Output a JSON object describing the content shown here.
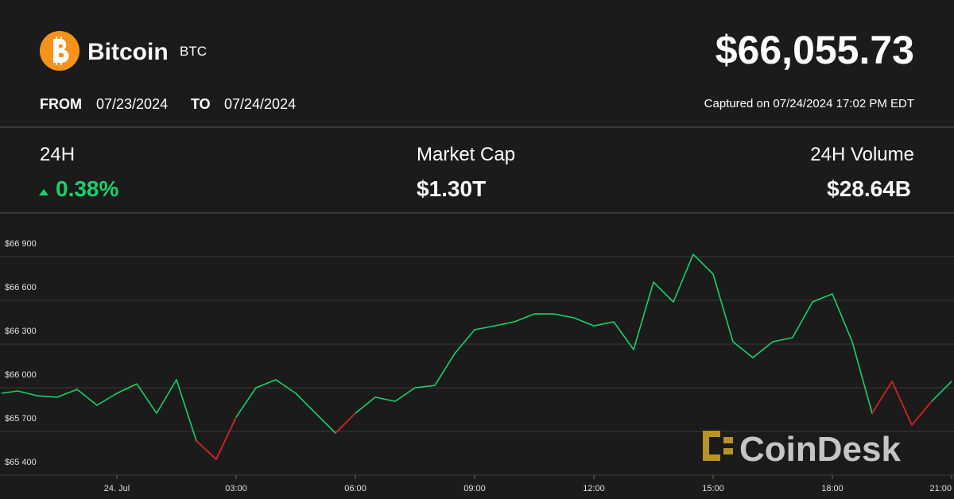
{
  "header": {
    "name": "Bitcoin",
    "symbol": "BTC",
    "price": "$66,055.73",
    "from_label": "FROM",
    "from_date": "07/23/2024",
    "to_label": "TO",
    "to_date": "07/24/2024",
    "captured": "Captured on 07/24/2024 17:02 PM EDT"
  },
  "stats": [
    {
      "label": "24H",
      "value": "0.38%"
    },
    {
      "label": "Market Cap",
      "value": "$1.30T"
    },
    {
      "label": "24H Volume",
      "value": "$28.64B"
    }
  ],
  "brand": "CoinDesk",
  "chart_data": {
    "type": "line",
    "x": [
      -2.9,
      -2.5,
      -2,
      -1.5,
      -1,
      -0.5,
      0,
      0.5,
      1,
      1.5,
      2,
      2.5,
      3,
      3.5,
      4,
      4.5,
      5,
      5.5,
      6,
      6.5,
      7,
      7.5,
      8,
      8.5,
      9,
      9.5,
      10,
      10.5,
      11,
      11.5,
      12,
      12.5,
      13,
      13.5,
      14,
      14.5,
      15,
      15.5,
      16,
      16.5,
      17,
      17.5,
      18,
      18.5,
      19,
      19.5,
      20,
      20.5,
      21
    ],
    "series": [
      {
        "color": "#19d16a",
        "values": [
          65962,
          65978,
          65945,
          65935,
          65989,
          65880,
          65962,
          66027,
          65825,
          66055,
          65635,
          65509,
          65798,
          66000,
          66055,
          65962,
          65825,
          65689,
          65825,
          65935,
          65907,
          66000,
          66016,
          66235,
          66398,
          66425,
          66453,
          66507,
          66507,
          66480,
          66425,
          66453,
          66262,
          66725,
          66589,
          66916,
          66780,
          66316,
          66207,
          66316,
          66344,
          66589,
          66644,
          66316,
          65825,
          66044,
          65744,
          65907,
          66044
        ]
      },
      {
        "color": "#e5161b",
        "values": [
          null,
          null,
          null,
          null,
          null,
          null,
          null,
          null,
          null,
          null,
          65635,
          65509,
          65798,
          null,
          null,
          null,
          null,
          65689,
          65825,
          null,
          null,
          null,
          null,
          null,
          null,
          null,
          null,
          null,
          null,
          null,
          null,
          null,
          null,
          null,
          null,
          null,
          null,
          null,
          null,
          null,
          null,
          null,
          null,
          null,
          65825,
          66044,
          65744,
          65907,
          null
        ]
      }
    ],
    "xlim": [
      -2.94,
      21.06
    ],
    "xticks": [
      {
        "value": 0,
        "label": "24. Jul"
      },
      {
        "value": 3,
        "label": "03:00"
      },
      {
        "value": 6,
        "label": "06:00"
      },
      {
        "value": 9,
        "label": "09:00"
      },
      {
        "value": 12,
        "label": "12:00"
      },
      {
        "value": 15,
        "label": "15:00"
      },
      {
        "value": 18,
        "label": "18:00"
      },
      {
        "value": 21,
        "label": "21:00"
      }
    ],
    "ylim": [
      65400,
      67200
    ],
    "yticks": [
      {
        "value": 65400,
        "label": "$65 400"
      },
      {
        "value": 65700,
        "label": "$65 700"
      },
      {
        "value": 66000,
        "label": "$66 000"
      },
      {
        "value": 66300,
        "label": "$66 300"
      },
      {
        "value": 66600,
        "label": "$66 600"
      },
      {
        "value": 66900,
        "label": "$66 900"
      }
    ],
    "grid": true
  }
}
